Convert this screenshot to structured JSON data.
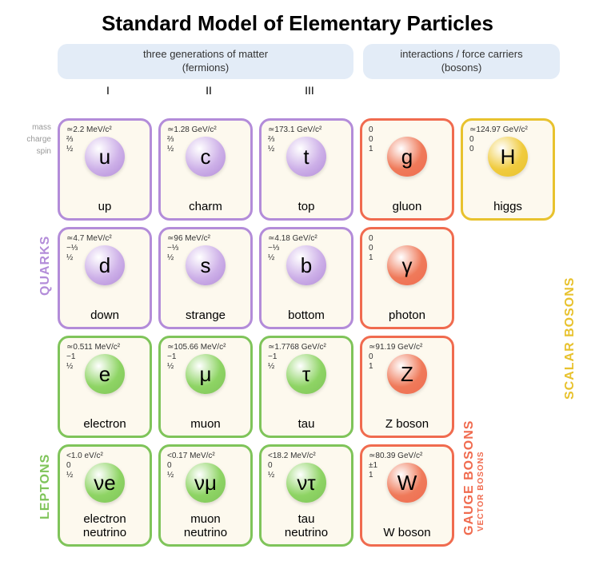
{
  "title": "Standard Model of Elementary Particles",
  "headers": {
    "fermions": {
      "line1": "three generations of matter",
      "line2": "(fermions)"
    },
    "bosons": {
      "line1": "interactions / force carriers",
      "line2": "(bosons)"
    }
  },
  "generations": {
    "g1": "I",
    "g2": "II",
    "g3": "III"
  },
  "prop_labels": {
    "mass": "mass",
    "charge": "charge",
    "spin": "spin"
  },
  "groups": {
    "quarks": {
      "label": "QUARKS",
      "color": "#b38cd9",
      "circle": "#cdb0e8"
    },
    "leptons": {
      "label": "LEPTONS",
      "color": "#7fc45a",
      "circle": "#8ed464"
    },
    "gauge": {
      "label": "GAUGE BOSONS",
      "sublabel": "VECTOR BOSONS",
      "color": "#f06b4f",
      "circle": "#ef7a5a"
    },
    "scalar": {
      "label": "SCALAR BOSONS",
      "color": "#e8c22e",
      "circle": "#f0cb3e"
    }
  },
  "header_pill_bg": "#e3ecf7",
  "cell_bg": "#fdf9ee",
  "particles": [
    {
      "row": 0,
      "col": 0,
      "sym": "u",
      "name": "up",
      "mass": "≃2.2 MeV/c²",
      "charge": "⅔",
      "spin": "½",
      "group": "quarks"
    },
    {
      "row": 0,
      "col": 1,
      "sym": "c",
      "name": "charm",
      "mass": "≃1.28 GeV/c²",
      "charge": "⅔",
      "spin": "½",
      "group": "quarks"
    },
    {
      "row": 0,
      "col": 2,
      "sym": "t",
      "name": "top",
      "mass": "≃173.1 GeV/c²",
      "charge": "⅔",
      "spin": "½",
      "group": "quarks"
    },
    {
      "row": 0,
      "col": 3,
      "sym": "g",
      "name": "gluon",
      "mass": "0",
      "charge": "0",
      "spin": "1",
      "group": "gauge"
    },
    {
      "row": 0,
      "col": 4,
      "sym": "H",
      "name": "higgs",
      "mass": "≃124.97 GeV/c²",
      "charge": "0",
      "spin": "0",
      "group": "scalar"
    },
    {
      "row": 1,
      "col": 0,
      "sym": "d",
      "name": "down",
      "mass": "≃4.7 MeV/c²",
      "charge": "−⅓",
      "spin": "½",
      "group": "quarks"
    },
    {
      "row": 1,
      "col": 1,
      "sym": "s",
      "name": "strange",
      "mass": "≃96 MeV/c²",
      "charge": "−⅓",
      "spin": "½",
      "group": "quarks"
    },
    {
      "row": 1,
      "col": 2,
      "sym": "b",
      "name": "bottom",
      "mass": "≃4.18 GeV/c²",
      "charge": "−⅓",
      "spin": "½",
      "group": "quarks"
    },
    {
      "row": 1,
      "col": 3,
      "sym": "γ",
      "name": "photon",
      "mass": "0",
      "charge": "0",
      "spin": "1",
      "group": "gauge"
    },
    {
      "row": 2,
      "col": 0,
      "sym": "e",
      "name": "electron",
      "mass": "≃0.511 MeV/c²",
      "charge": "−1",
      "spin": "½",
      "group": "leptons"
    },
    {
      "row": 2,
      "col": 1,
      "sym": "μ",
      "name": "muon",
      "mass": "≃105.66 MeV/c²",
      "charge": "−1",
      "spin": "½",
      "group": "leptons"
    },
    {
      "row": 2,
      "col": 2,
      "sym": "τ",
      "name": "tau",
      "mass": "≃1.7768 GeV/c²",
      "charge": "−1",
      "spin": "½",
      "group": "leptons"
    },
    {
      "row": 2,
      "col": 3,
      "sym": "Z",
      "name": "Z boson",
      "mass": "≃91.19 GeV/c²",
      "charge": "0",
      "spin": "1",
      "group": "gauge"
    },
    {
      "row": 3,
      "col": 0,
      "sym": "νe",
      "name": "electron\nneutrino",
      "mass": "<1.0 eV/c²",
      "charge": "0",
      "spin": "½",
      "group": "leptons"
    },
    {
      "row": 3,
      "col": 1,
      "sym": "νμ",
      "name": "muon\nneutrino",
      "mass": "<0.17 MeV/c²",
      "charge": "0",
      "spin": "½",
      "group": "leptons"
    },
    {
      "row": 3,
      "col": 2,
      "sym": "ντ",
      "name": "tau\nneutrino",
      "mass": "<18.2 MeV/c²",
      "charge": "0",
      "spin": "½",
      "group": "leptons"
    },
    {
      "row": 3,
      "col": 3,
      "sym": "W",
      "name": "W boson",
      "mass": "≃80.39 GeV/c²",
      "charge": "±1",
      "spin": "1",
      "group": "gauge"
    }
  ]
}
